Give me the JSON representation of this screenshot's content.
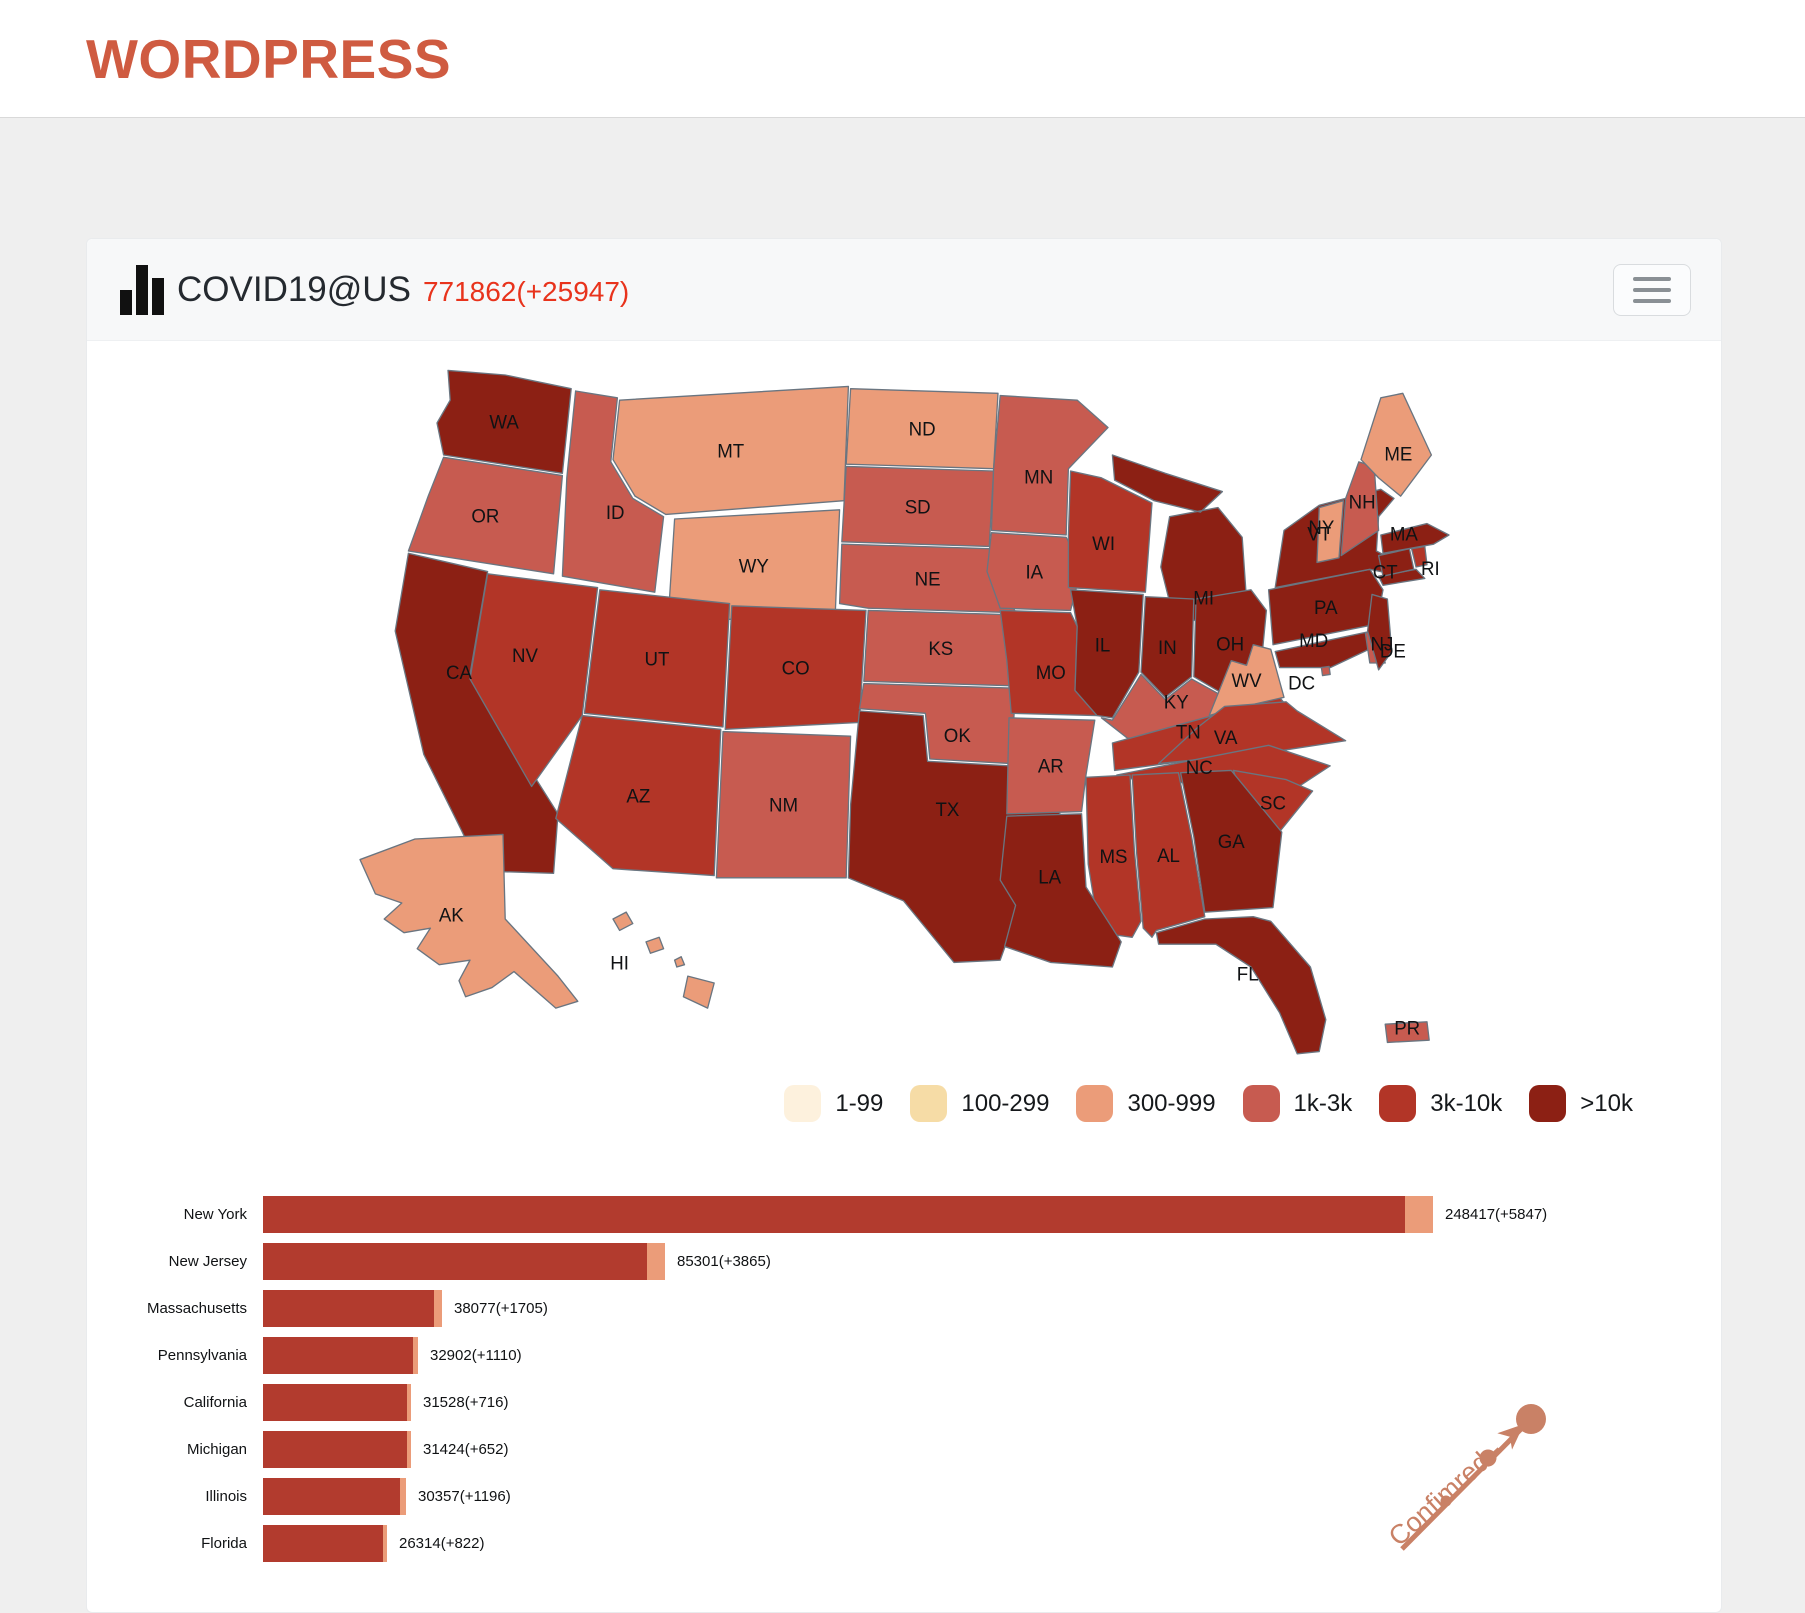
{
  "site": {
    "logo": "WORDPRESS",
    "logo_color": "#cf5b41"
  },
  "dashboard": {
    "title": "COVID19@US",
    "total_counter": "771862(+25947)",
    "counter_color": "#e8331c",
    "menu_icon": "hamburger-icon",
    "title_icon": "bar-chart-icon"
  },
  "map": {
    "stroke_color": "#6a7580",
    "legend": [
      {
        "label": "1-99",
        "color": "#fdf1dd"
      },
      {
        "label": "100-299",
        "color": "#f6dca6"
      },
      {
        "label": "300-999",
        "color": "#eb9c79"
      },
      {
        "label": "1k-3k",
        "color": "#c75b50"
      },
      {
        "label": "3k-10k",
        "color": "#b23527"
      },
      {
        "label": ">10k",
        "color": "#8c2014"
      }
    ],
    "states": [
      {
        "code": "WA",
        "category": 5
      },
      {
        "code": "OR",
        "category": 3
      },
      {
        "code": "CA",
        "category": 5
      },
      {
        "code": "NV",
        "category": 4
      },
      {
        "code": "ID",
        "category": 3
      },
      {
        "code": "MT",
        "category": 2
      },
      {
        "code": "WY",
        "category": 2
      },
      {
        "code": "UT",
        "category": 4
      },
      {
        "code": "CO",
        "category": 4
      },
      {
        "code": "AZ",
        "category": 4
      },
      {
        "code": "NM",
        "category": 3
      },
      {
        "code": "ND",
        "category": 2
      },
      {
        "code": "SD",
        "category": 3
      },
      {
        "code": "NE",
        "category": 3
      },
      {
        "code": "KS",
        "category": 3
      },
      {
        "code": "OK",
        "category": 3
      },
      {
        "code": "TX",
        "category": 5
      },
      {
        "code": "MN",
        "category": 3
      },
      {
        "code": "IA",
        "category": 3
      },
      {
        "code": "MO",
        "category": 4
      },
      {
        "code": "WI",
        "category": 4
      },
      {
        "code": "IL",
        "category": 5
      },
      {
        "code": "MI",
        "category": 5
      },
      {
        "code": "IN",
        "category": 5
      },
      {
        "code": "OH",
        "category": 5
      },
      {
        "code": "KY",
        "category": 3
      },
      {
        "code": "TN",
        "category": 4
      },
      {
        "code": "AR",
        "category": 3
      },
      {
        "code": "LA",
        "category": 5
      },
      {
        "code": "MS",
        "category": 4
      },
      {
        "code": "AL",
        "category": 4
      },
      {
        "code": "GA",
        "category": 5
      },
      {
        "code": "FL",
        "category": 5
      },
      {
        "code": "SC",
        "category": 4
      },
      {
        "code": "NC",
        "category": 4
      },
      {
        "code": "VA",
        "category": 4
      },
      {
        "code": "WV",
        "category": 2
      },
      {
        "code": "MD",
        "category": 5
      },
      {
        "code": "DE",
        "category": 3
      },
      {
        "code": "DC",
        "category": 3
      },
      {
        "code": "PA",
        "category": 5
      },
      {
        "code": "NJ",
        "category": 5
      },
      {
        "code": "NY",
        "category": 5
      },
      {
        "code": "CT",
        "category": 5
      },
      {
        "code": "RI",
        "category": 4
      },
      {
        "code": "MA",
        "category": 5
      },
      {
        "code": "VT",
        "category": 2
      },
      {
        "code": "NH",
        "category": 3
      },
      {
        "code": "ME",
        "category": 2
      },
      {
        "code": "AK",
        "category": 2
      },
      {
        "code": "HI",
        "category": 2
      },
      {
        "code": "PR",
        "category": 3
      }
    ]
  },
  "bar_chart": {
    "type": "bar",
    "bar_color": "#b23b2e",
    "increase_color": "#eb9c79",
    "max_value": 248417,
    "rows": [
      {
        "state": "New York",
        "value": 248417,
        "increase": 5847,
        "label": "248417(+5847)"
      },
      {
        "state": "New Jersey",
        "value": 85301,
        "increase": 3865,
        "label": "85301(+3865)"
      },
      {
        "state": "Massachusetts",
        "value": 38077,
        "increase": 1705,
        "label": "38077(+1705)"
      },
      {
        "state": "Pennsylvania",
        "value": 32902,
        "increase": 1110,
        "label": "32902(+1110)"
      },
      {
        "state": "California",
        "value": 31528,
        "increase": 716,
        "label": "31528(+716)"
      },
      {
        "state": "Michigan",
        "value": 31424,
        "increase": 652,
        "label": "31424(+652)"
      },
      {
        "state": "Illinois",
        "value": 30357,
        "increase": 1196,
        "label": "30357(+1196)"
      },
      {
        "state": "Florida",
        "value": 26314,
        "increase": 822,
        "label": "26314(+822)"
      }
    ]
  },
  "annotation": {
    "text": "Confimred",
    "suffix": "-",
    "color": "#c98166"
  }
}
